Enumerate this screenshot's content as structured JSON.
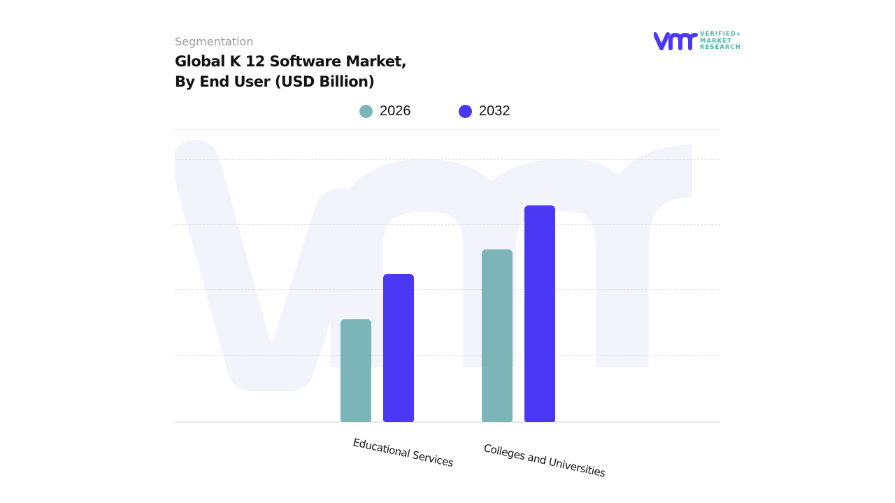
{
  "header": {
    "subtitle": "Segmentation",
    "title_line1": "Global K 12 Software Market,",
    "title_line2": "By End User (USD Billion)"
  },
  "logo": {
    "mark": "vmr",
    "line1": "VERIFIED",
    "line2": "MARKET",
    "line3": "RESEARCH",
    "registered": "®"
  },
  "legend": [
    {
      "label": "2026",
      "color": "#7bb5b8"
    },
    {
      "label": "2032",
      "color": "#4a38f5"
    }
  ],
  "colors": {
    "series_2026": "#7bb5b8",
    "series_2032": "#4a38f5",
    "watermark": "#f2f3fb",
    "grid": "#e2e2e2"
  },
  "chart_data": {
    "type": "bar",
    "title": "Global K 12 Software Market, By End User (USD Billion)",
    "subtitle": "Segmentation",
    "categories": [
      "Educational Services",
      "Colleges and Universities"
    ],
    "series": [
      {
        "name": "2026",
        "values": [
          1.58,
          2.66
        ]
      },
      {
        "name": "2032",
        "values": [
          2.28,
          3.33
        ]
      }
    ],
    "xlabel": "",
    "ylabel": "USD Billion",
    "ylim": [
      0,
      4
    ],
    "grid": true,
    "legend_position": "top",
    "note": "No y-axis tick labels shown; values estimated relative to dashed gridlines (1 gridline interval = 1 unit)"
  }
}
